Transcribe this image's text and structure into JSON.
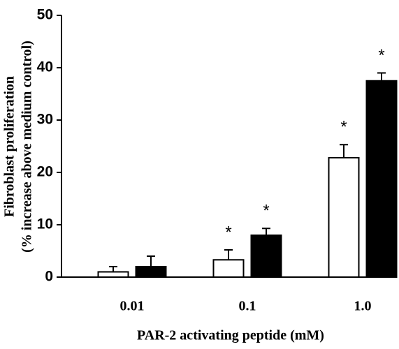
{
  "chart_data": {
    "type": "bar",
    "categories": [
      "0.01",
      "0.1",
      "1.0"
    ],
    "xlabel": "PAR-2 activating peptide (mM)",
    "ylabel": [
      "Fibroblast proliferation",
      "(% increase above medium control)"
    ],
    "series": [
      {
        "color": "#ffffff",
        "values": [
          1,
          3.3,
          22.8
        ],
        "errors": [
          1,
          1.9,
          2.5
        ],
        "annotations": [
          null,
          "*",
          "*"
        ]
      },
      {
        "color": "#000000",
        "values": [
          2,
          8,
          37.5
        ],
        "errors": [
          2,
          1.3,
          1.5
        ],
        "annotations": [
          null,
          "*",
          "*"
        ]
      }
    ],
    "ylim": [
      0,
      50
    ],
    "yticks": [
      0,
      10,
      20,
      30,
      40,
      50
    ]
  }
}
